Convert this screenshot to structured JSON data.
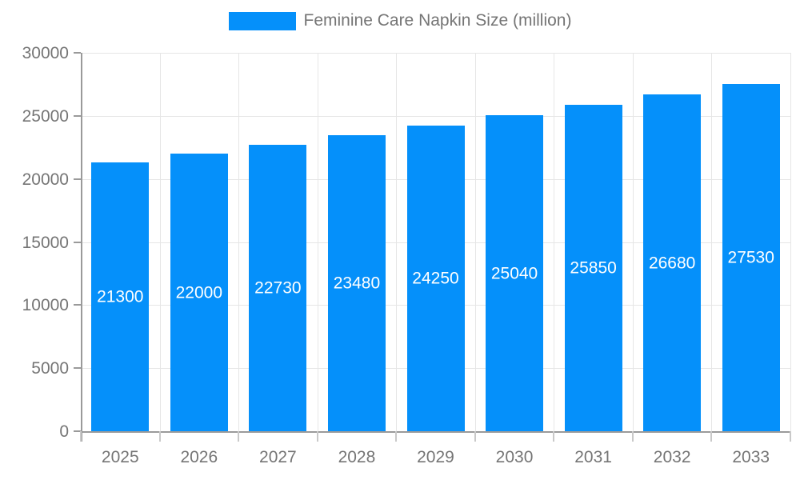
{
  "chart_data": {
    "type": "bar",
    "title": "Feminine Care Napkin Size (million)",
    "categories": [
      "2025",
      "2026",
      "2027",
      "2028",
      "2029",
      "2030",
      "2031",
      "2032",
      "2033"
    ],
    "series": [
      {
        "name": "Feminine Care Napkin Size (million)",
        "values": [
          21300,
          22000,
          22730,
          23480,
          24250,
          25040,
          25850,
          26680,
          27530
        ]
      }
    ],
    "xlabel": "",
    "ylabel": "",
    "ylim": [
      0,
      30000
    ],
    "y_ticks": [
      0,
      5000,
      10000,
      15000,
      20000,
      25000,
      30000
    ],
    "grid": true,
    "legend_position": "top-center",
    "bar_labels_inside": true,
    "colors": {
      "bar": "#0590fa",
      "bar_label": "#ffffff",
      "axis": "#9a9a9a",
      "gridline": "#e6e6e6",
      "text": "#757575",
      "background": "#ffffff"
    }
  }
}
